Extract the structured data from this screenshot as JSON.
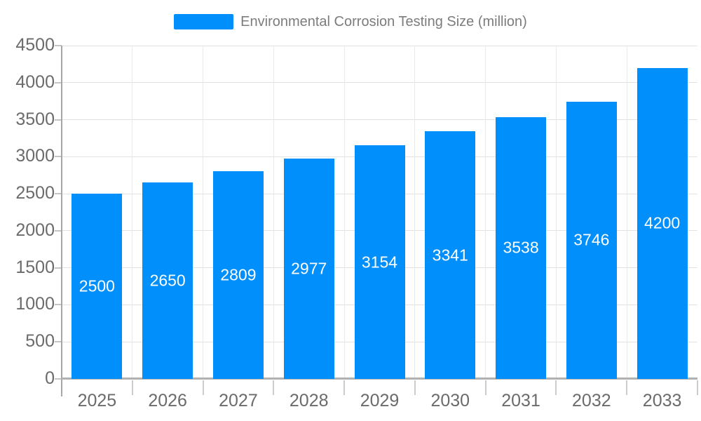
{
  "legend": {
    "label": "Environmental Corrosion Testing Size (million)",
    "swatch_color": "#008FFB"
  },
  "chart_data": {
    "type": "bar",
    "title": "",
    "xlabel": "",
    "ylabel": "",
    "categories": [
      "2025",
      "2026",
      "2027",
      "2028",
      "2029",
      "2030",
      "2031",
      "2032",
      "2033"
    ],
    "series": [
      {
        "name": "Environmental Corrosion Testing Size (million)",
        "values": [
          2500,
          2650,
          2809,
          2977,
          3154,
          3341,
          3538,
          3746,
          4200
        ]
      }
    ],
    "data_labels": [
      "2500",
      "2650",
      "2809",
      "2977",
      "3154",
      "3341",
      "3538",
      "3746",
      "4200"
    ],
    "ylim": [
      0,
      4500
    ],
    "ytick_step": 500,
    "ytick_labels": [
      "0",
      "500",
      "1000",
      "1500",
      "2000",
      "2500",
      "3000",
      "3500",
      "4000",
      "4500"
    ],
    "grid": true,
    "legend_position": "top",
    "colors": {
      "bar": "#008FFB",
      "data_label_text": "#ffffff",
      "axis_label_text": "#6b6b6b",
      "legend_text": "#7c7c7c",
      "gridline": "#e2e2e2",
      "axis_line": "#a6a6a6"
    }
  }
}
